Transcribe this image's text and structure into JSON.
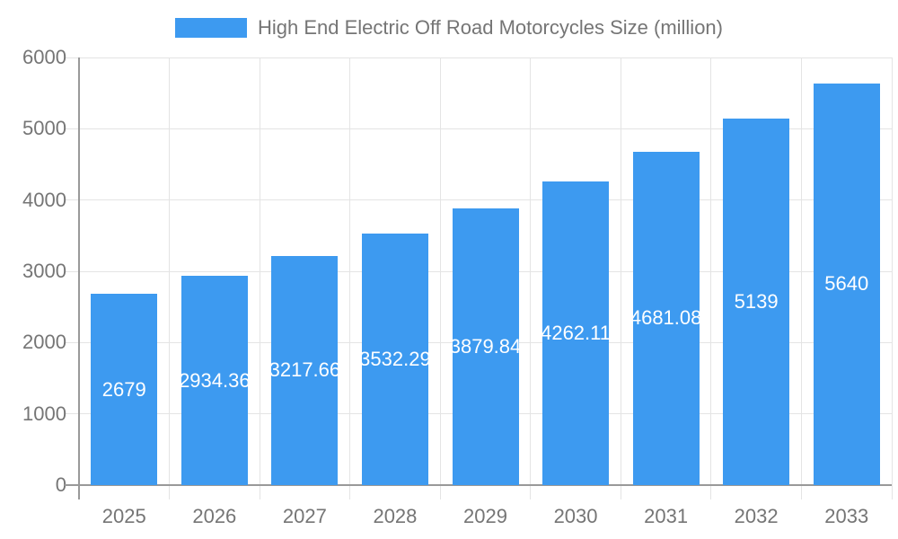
{
  "legend": {
    "label": "High End Electric Off Road Motorcycles Size (million)"
  },
  "colors": {
    "bar": "#3D9AF0",
    "grid": "#E4E4E4",
    "axis": "#999999",
    "tick_text": "#757575",
    "legend_text": "#757575",
    "bar_label_text": "#FFFFFF",
    "background": "#FFFFFF"
  },
  "chart_data": {
    "type": "bar",
    "title": "High End Electric Off Road Motorcycles Size (million)",
    "series_name": "High End Electric Off Road Motorcycles Size (million)",
    "categories": [
      "2025",
      "2026",
      "2027",
      "2028",
      "2029",
      "2030",
      "2031",
      "2032",
      "2033"
    ],
    "values": [
      2679,
      2934.36,
      3217.66,
      3532.29,
      3879.84,
      4262.11,
      4681.08,
      5139,
      5640
    ],
    "bar_labels": [
      "2679",
      "2934.36",
      "3217.66",
      "3532.29",
      "3879.84",
      "4262.11",
      "4681.08",
      "5139",
      "5640"
    ],
    "xlabel": "",
    "ylabel": "",
    "ylim": [
      0,
      6000
    ],
    "yticks": [
      0,
      1000,
      2000,
      3000,
      4000,
      5000,
      6000
    ],
    "grid": true,
    "legend_position": "top"
  }
}
